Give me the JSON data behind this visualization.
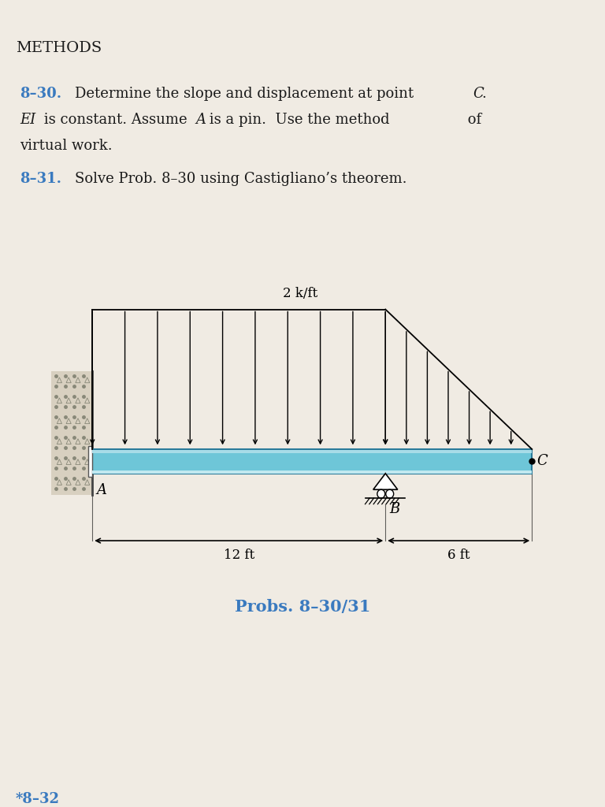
{
  "bg_color": "#f0ebe3",
  "page_bg": "#f0ebe3",
  "title_text": "METHODS",
  "label_color": "#3a7abf",
  "text_color": "#1a1a1a",
  "load_label": "2 k/ft",
  "dist_12ft": "12 ft",
  "dist_6ft": "6 ft",
  "caption": "Probs. 8–30/31",
  "beam_color": "#6ec6d8",
  "beam_top_highlight": "#a8dce8",
  "beam_bot_highlight": "#c0e8f0",
  "beam_edge": "#2a7a9a",
  "footer_text": "*8–32",
  "wall_color": "#d0c8b8",
  "wall_dot_color": "#999988"
}
